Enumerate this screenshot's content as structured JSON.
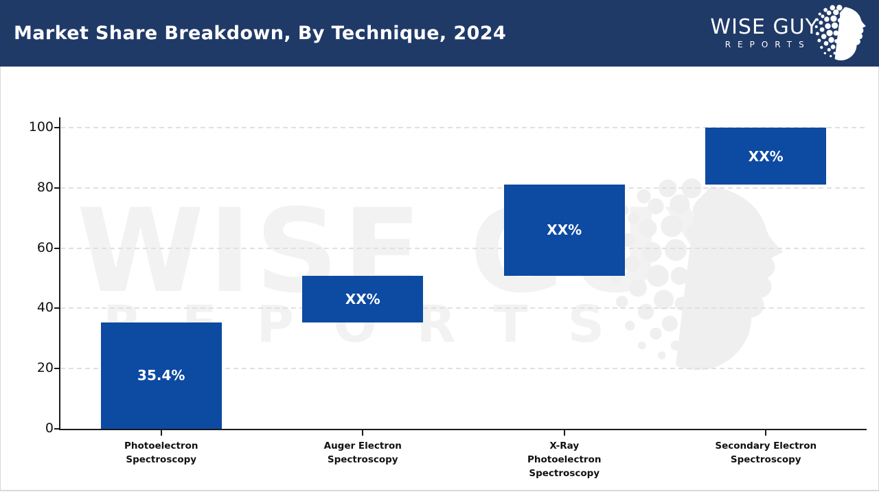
{
  "header": {
    "logo": {
      "line1": "WISE GUY",
      "line2": "REPORTS"
    }
  },
  "watermark": {
    "line1": "WISE GUY",
    "line2": "REPORTS"
  },
  "chart_data": {
    "type": "bar",
    "subtype": "floating-waterfall",
    "title": "Market Share Breakdown, By Technique, 2024",
    "categories": [
      "Photoelectron Spectroscopy",
      "Auger Electron Spectroscopy",
      "X-Ray Photoelectron Spectroscopy",
      "Secondary Electron Spectroscopy"
    ],
    "category_lines": [
      [
        "Photoelectron",
        "Spectroscopy"
      ],
      [
        "Auger Electron",
        "Spectroscopy"
      ],
      [
        "X-Ray",
        "Photoelectron",
        "Spectroscopy"
      ],
      [
        "Secondary Electron",
        "Spectroscopy"
      ]
    ],
    "bars": [
      {
        "start": 0,
        "end": 35.4,
        "label": "35.4%"
      },
      {
        "start": 35.4,
        "end": 50.9,
        "label": "XX%"
      },
      {
        "start": 50.9,
        "end": 81,
        "label": "XX%"
      },
      {
        "start": 81,
        "end": 100,
        "label": "XX%"
      }
    ],
    "yticks": [
      0,
      20,
      40,
      60,
      80,
      100
    ],
    "ylim": [
      0,
      100
    ],
    "grid": {
      "axis": "y",
      "style": "dashed",
      "color": "#e0e0e0"
    },
    "legend": "none",
    "xlabel": "",
    "ylabel": "",
    "bar_color": "#0d4aa2",
    "bar_label_color": "#ffffff"
  },
  "colors": {
    "header_bg": "#203a68",
    "header_text": "#ffffff",
    "axis": "#1a1a1a",
    "grid": "#e0e0e0",
    "watermark": "#f2f2f2",
    "card_edge": "#d9d9d9",
    "plot_bg": "#ffffff"
  }
}
